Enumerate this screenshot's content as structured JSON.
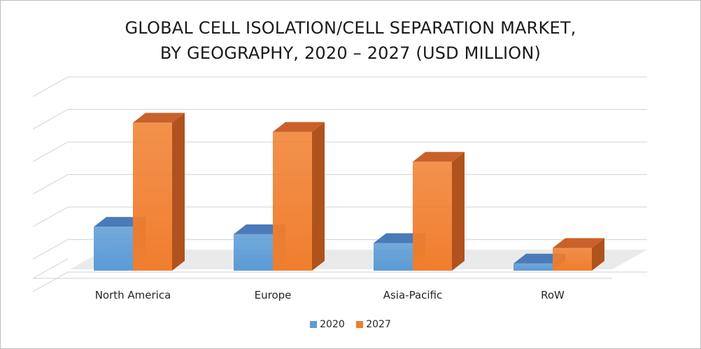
{
  "chart_data": {
    "type": "bar",
    "title_lines": [
      "GLOBAL CELL ISOLATION/CELL SEPARATION MARKET,",
      "BY GEOGRAPHY, 2020 – 2027 (USD MILLION)"
    ],
    "categories": [
      "North America",
      "Europe",
      "Asia-Pacific",
      "RoW"
    ],
    "series": [
      {
        "name": "2020",
        "values": [
          1.35,
          1.12,
          0.85,
          0.22
        ],
        "color": "#4472c4",
        "front": "#5b9bd5",
        "top": "#4a7ab8",
        "side": "#3a6290"
      },
      {
        "name": "2027",
        "values": [
          4.55,
          4.27,
          3.35,
          0.7
        ],
        "color": "#ed7d31",
        "front": "#f07e2e",
        "top": "#c9612a",
        "side": "#b0521d"
      }
    ],
    "ylim": [
      0,
      5
    ],
    "grid": true,
    "legend_position": "bottom",
    "bar_style": "3d"
  }
}
